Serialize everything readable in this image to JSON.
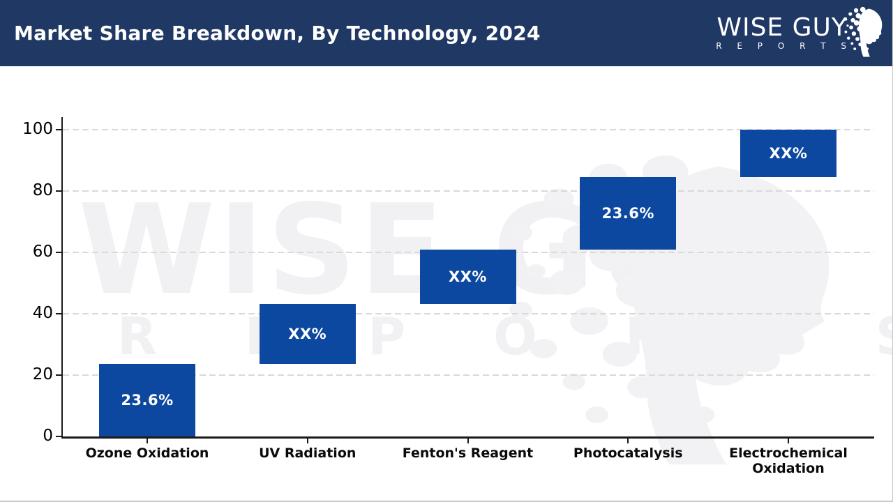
{
  "header": {
    "title": "Market Share Breakdown, By Technology, 2024",
    "bg_color": "#1f3864",
    "logo": {
      "line1": "WISE GUY",
      "line2": "R E P O R T S"
    }
  },
  "watermark": {
    "line1": "WISE GUY",
    "line2": "REPORTS"
  },
  "chart_data": {
    "type": "bar",
    "subtype": "waterfall",
    "title": "Market Share Breakdown, By Technology, 2024",
    "xlabel": "",
    "ylabel": "",
    "ylim": [
      0,
      105
    ],
    "yticks": [
      0,
      20,
      40,
      60,
      80,
      100
    ],
    "grid": "horizontal-dashed",
    "legend": "none",
    "bar_color": "#0c489f",
    "label_color": "#ffffff",
    "categories": [
      "Ozone Oxidation",
      "UV Radiation",
      "Fenton's Reagent",
      "Photocatalysis",
      "Electrochemical Oxidation"
    ],
    "segments": [
      {
        "category": "Ozone Oxidation",
        "start": 0,
        "end": 23.6,
        "label": "23.6%"
      },
      {
        "category": "UV Radiation",
        "start": 23.6,
        "end": 43.2,
        "label": "XX%"
      },
      {
        "category": "Fenton's Reagent",
        "start": 43.2,
        "end": 61.0,
        "label": "XX%"
      },
      {
        "category": "Photocatalysis",
        "start": 61.0,
        "end": 84.6,
        "label": "23.6%"
      },
      {
        "category": "Electrochemical Oxidation",
        "start": 84.6,
        "end": 100,
        "label": "XX%"
      }
    ]
  }
}
